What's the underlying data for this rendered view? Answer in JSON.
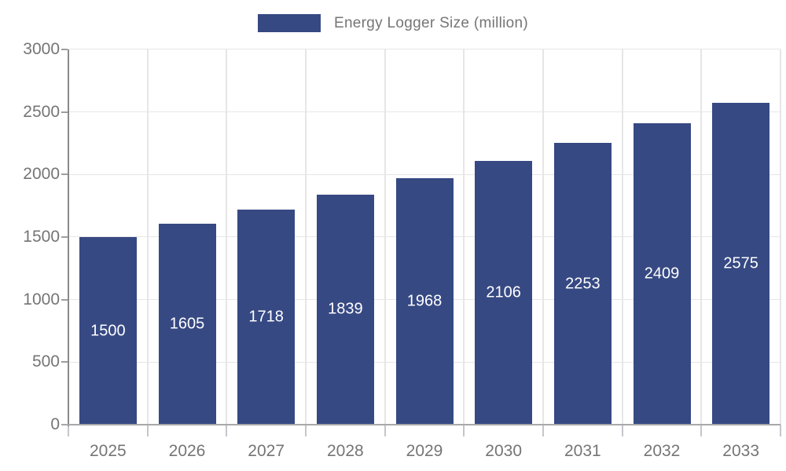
{
  "chart_data": {
    "type": "bar",
    "title": "Energy Logger Size (million)",
    "categories": [
      "2025",
      "2026",
      "2027",
      "2028",
      "2029",
      "2030",
      "2031",
      "2032",
      "2033"
    ],
    "values": [
      1500,
      1605,
      1718,
      1839,
      1968,
      2106,
      2253,
      2409,
      2575
    ],
    "xlabel": "",
    "ylabel": "",
    "ylim": [
      0,
      3000
    ],
    "yticks": [
      0,
      500,
      1000,
      1500,
      2000,
      2500,
      3000
    ],
    "grid": true,
    "legend_position": "top-center",
    "value_labels": "inside-center",
    "style": {
      "bar_color": "#364983",
      "value_label_color": "#ffffff",
      "grid_color": "#e6e6e6",
      "y_axis_color": "#8a8a8a",
      "x_axis_color": "#a8a8a8",
      "x_tick_color": "#c5c5cd",
      "y_tick_color": "#9e9e9e",
      "text_color": "#757575",
      "background": "#ffffff"
    }
  }
}
